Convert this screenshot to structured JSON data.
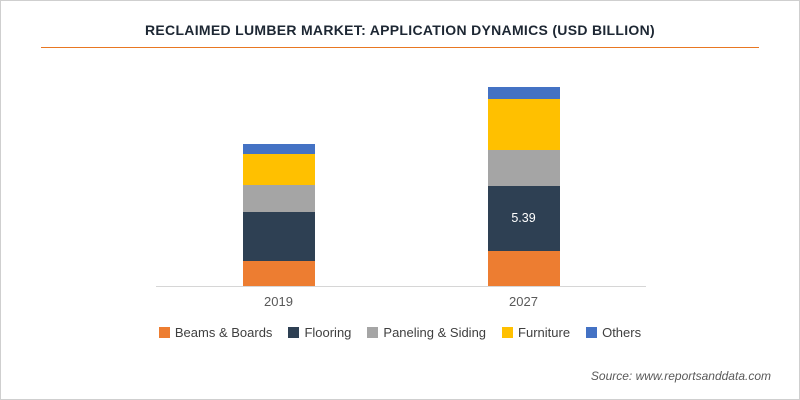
{
  "title": "RECLAIMED LUMBER MARKET: APPLICATION DYNAMICS (USD BILLION)",
  "source": "Source: www.reportsanddata.com",
  "colors": {
    "accent_rule": "#e87722",
    "axis_line": "#d6d6d6",
    "axis_label": "#595959",
    "title_text": "#1d2733"
  },
  "chart_data": {
    "type": "bar",
    "stacked": true,
    "title": "RECLAIMED LUMBER MARKET: APPLICATION DYNAMICS (USD BILLION)",
    "xlabel": "",
    "ylabel": "USD Billion",
    "ylim": [
      0,
      16.5
    ],
    "grid": false,
    "legend_position": "bottom",
    "categories": [
      "2019",
      "2027"
    ],
    "series": [
      {
        "name": "Beams & Boards",
        "color": "#ED7D31",
        "values": [
          2.1,
          2.9
        ]
      },
      {
        "name": "Flooring",
        "color": "#2E4053",
        "values": [
          4.0,
          5.39
        ]
      },
      {
        "name": "Paneling & Siding",
        "color": "#A5A5A5",
        "values": [
          2.2,
          2.9
        ]
      },
      {
        "name": "Furniture",
        "color": "#FFC000",
        "values": [
          2.6,
          4.2
        ]
      },
      {
        "name": "Others",
        "color": "#4472C4",
        "values": [
          0.8,
          1.0
        ]
      }
    ],
    "data_labels": [
      {
        "category": "2027",
        "series": "Flooring",
        "value": "5.39"
      }
    ]
  }
}
